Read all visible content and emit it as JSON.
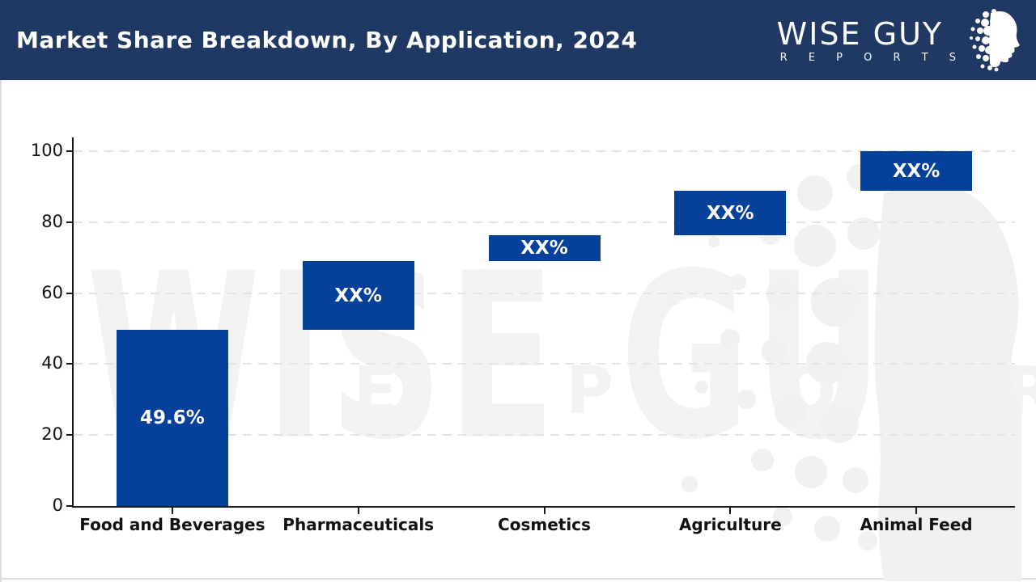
{
  "header": {
    "title": "Market Share Breakdown, By Application, 2024",
    "bg_color": "#1f3864",
    "logo": {
      "line1": "WISE GUY",
      "line2": "R E P O R T S"
    }
  },
  "watermark": {
    "line1": "WISE GUY",
    "line2": "R E P O R T S"
  },
  "chart_data": {
    "type": "bar",
    "subtype": "waterfall",
    "title": "Market Share Breakdown, By Application, 2024",
    "categories": [
      "Food and Beverages",
      "Pharmaceuticals",
      "Cosmetics",
      "Agriculture",
      "Animal Feed"
    ],
    "segments": [
      {
        "category": "Food and Beverages",
        "start": 0,
        "end": 49.6,
        "label": "49.6%"
      },
      {
        "category": "Pharmaceuticals",
        "start": 49.6,
        "end": 69,
        "label": "XX%"
      },
      {
        "category": "Cosmetics",
        "start": 69,
        "end": 76.3,
        "label": "XX%"
      },
      {
        "category": "Agriculture",
        "start": 76.3,
        "end": 88.8,
        "label": "XX%"
      },
      {
        "category": "Animal Feed",
        "start": 88.8,
        "end": 100,
        "label": "XX%"
      }
    ],
    "yticks": [
      0,
      20,
      40,
      60,
      80,
      100
    ],
    "ylim": [
      0,
      104
    ],
    "xlabel": "",
    "ylabel": "",
    "grid": "horizontal-dashed",
    "legend": "none",
    "bar_color": "#05409a",
    "bar_label_color": "#ffffff",
    "axis_color": "#1a1a1a",
    "gridline_color": "#e4e4e4",
    "watermark_color": "#f2f2f4"
  }
}
